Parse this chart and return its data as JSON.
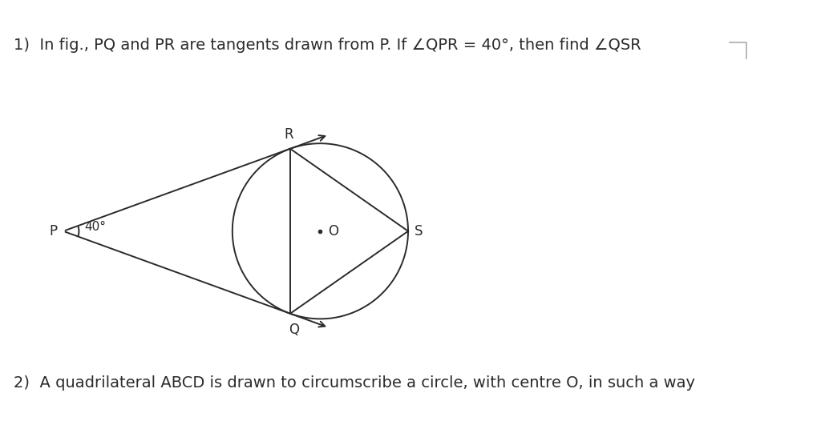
{
  "title_text": "1)  In fig., PQ and PR are tangents drawn from P. If ∠QPR = 40°, then find ∠QSR",
  "subtitle_text": "2)  A quadrilateral ABCD is drawn to circumscribe a circle, with centre O, in such a way",
  "background_color": "#ffffff",
  "label_P": "P",
  "label_Q": "Q",
  "label_R": "R",
  "label_O": "O",
  "label_S": "S",
  "angle_label": "40°",
  "line_color": "#2b2b2b",
  "text_color": "#2b2b2b",
  "font_size_title": 14,
  "font_size_labels": 12,
  "font_size_subtitle": 14
}
